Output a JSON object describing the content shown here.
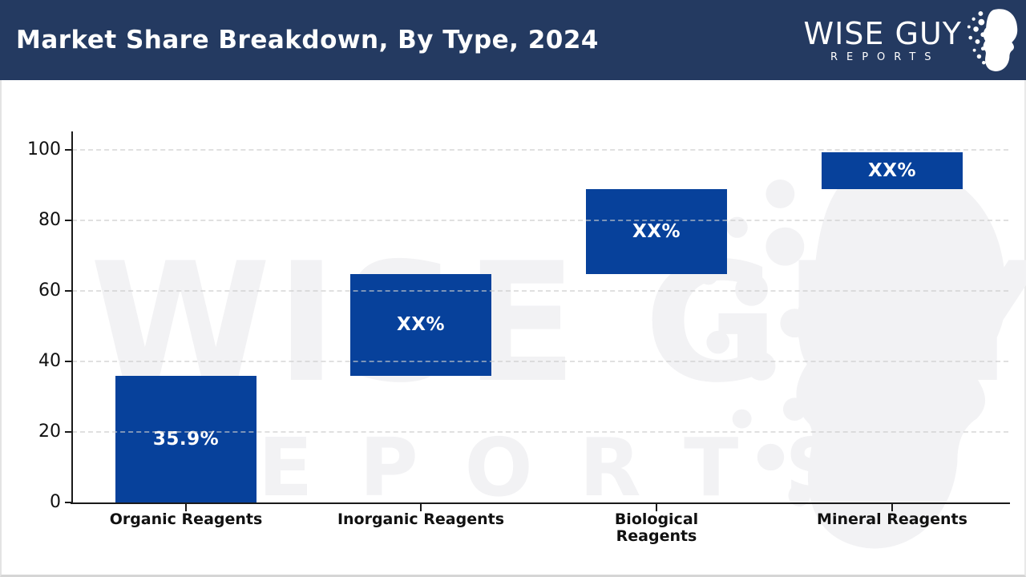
{
  "header": {
    "title": "Market Share Breakdown, By Type, 2024",
    "bg_color": "#243a61",
    "logo": {
      "line1": "WISE GUY",
      "line2": "REPORTS"
    }
  },
  "watermark": {
    "line1": "WISE GUY",
    "line2": "REPORTS"
  },
  "chart_data": {
    "type": "bar",
    "subtype": "waterfall",
    "title": "Market Share Breakdown, By Type, 2024",
    "categories": [
      "Organic Reagents",
      "Inorganic Reagents",
      "Biological Reagents",
      "Mineral Reagents"
    ],
    "segments": [
      {
        "category": "Organic Reagents",
        "start": 0,
        "end": 35.9,
        "label": "35.9%"
      },
      {
        "category": "Inorganic Reagents",
        "start": 35.9,
        "end": 64.8,
        "label": "XX%"
      },
      {
        "category": "Biological Reagents",
        "start": 64.8,
        "end": 88.9,
        "label": "XX%"
      },
      {
        "category": "Mineral Reagents",
        "start": 88.9,
        "end": 99.3,
        "label": "XX%"
      }
    ],
    "ylim": [
      0,
      100
    ],
    "yticks": [
      "0",
      "20",
      "40",
      "60",
      "80",
      "100"
    ],
    "grid": "horizontal-dashed",
    "legend": "none",
    "bar_color": "#07419b",
    "axis_color": "#1a1a1a",
    "grid_color": "#d9d9d9"
  }
}
